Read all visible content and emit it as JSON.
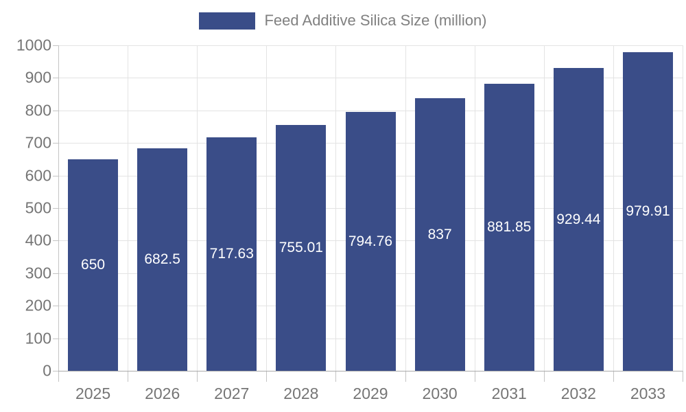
{
  "legend": {
    "label": "Feed Additive Silica Size (million)",
    "position": "top"
  },
  "colors": {
    "bar": "#3a4d88",
    "value_label": "#ffffff",
    "tick_text": "#757575",
    "legend_text": "#808080",
    "gridline": "#e3e3e3",
    "x_axis_line": "#aaaaaa",
    "y_axis_line": "#c4c4c4"
  },
  "chart_data": {
    "type": "bar",
    "title": "Feed Additive Silica Size (million)",
    "series_name": "Feed Additive Silica Size (million)",
    "categories": [
      "2025",
      "2026",
      "2027",
      "2028",
      "2029",
      "2030",
      "2031",
      "2032",
      "2033"
    ],
    "values": [
      650,
      682.5,
      717.63,
      755.01,
      794.76,
      837,
      881.85,
      929.44,
      979.91
    ],
    "value_labels": [
      "650",
      "682.5",
      "717.63",
      "755.01",
      "794.76",
      "837",
      "881.85",
      "929.44",
      "979.91"
    ],
    "xlabel": "",
    "ylabel": "",
    "ylim": [
      0,
      1000
    ],
    "yticks": [
      0,
      100,
      200,
      300,
      400,
      500,
      600,
      700,
      800,
      900,
      1000
    ],
    "grid": true,
    "legend_position": "top",
    "value_label_placement": "center-of-bar"
  }
}
